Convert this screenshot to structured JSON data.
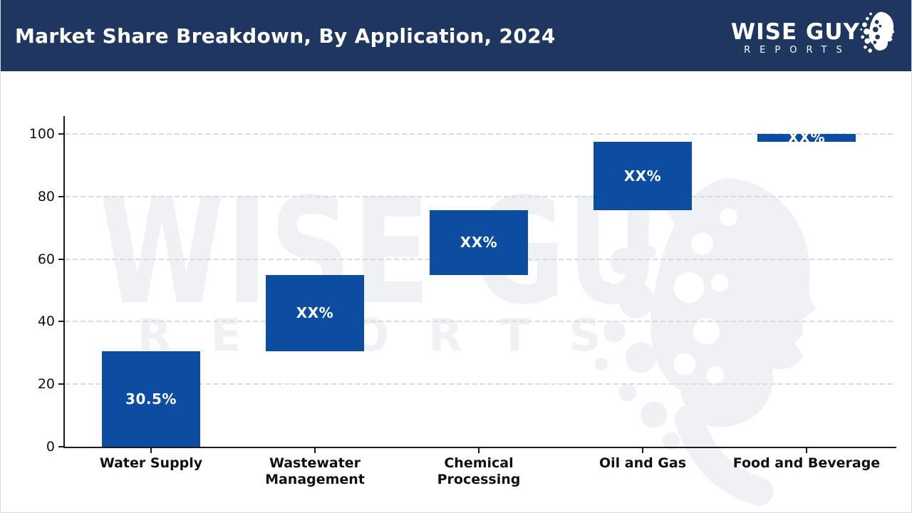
{
  "header": {
    "title": "Market Share Breakdown, By Application, 2024",
    "logo": {
      "wordmark": "WISE GUY",
      "subtitle": "REPORTS"
    }
  },
  "watermark": {
    "wordmark": "WISE GUY",
    "subtitle": "REPORTS"
  },
  "colors": {
    "header_bg": "#1F3660",
    "bar_blue": "#0C4DA2",
    "grid_gray": "#DCDCDC",
    "axis_black": "#1A1A1A",
    "watermark_gray": "#F0F1F4",
    "title_text": "#FFFFFF",
    "bar_label_text": "#FFFFFF"
  },
  "chart_data": {
    "type": "bar",
    "subtype": "floating-waterfall",
    "title": "Market Share Breakdown, By Application, 2024",
    "xlabel": "",
    "ylabel": "",
    "ylim": [
      0,
      100
    ],
    "yticks": [
      0,
      20,
      40,
      60,
      80,
      100
    ],
    "grid": "horizontal-dashed",
    "legend": "none",
    "categories": [
      "Water Supply",
      "Wastewater Management",
      "Chemical Processing",
      "Oil and Gas",
      "Food and Beverage"
    ],
    "category_label_lines": [
      [
        "Water Supply"
      ],
      [
        "Wastewater",
        "Management"
      ],
      [
        "Chemical",
        "Processing"
      ],
      [
        "Oil and Gas"
      ],
      [
        "Food and Beverage"
      ]
    ],
    "segments": [
      {
        "category": "Water Supply",
        "start": 0,
        "end": 30.5,
        "label": "30.5%"
      },
      {
        "category": "Wastewater Management",
        "start": 30.5,
        "end": 55,
        "label": "XX%"
      },
      {
        "category": "Chemical Processing",
        "start": 55,
        "end": 75.6,
        "label": "XX%"
      },
      {
        "category": "Oil and Gas",
        "start": 75.6,
        "end": 97.5,
        "label": "XX%"
      },
      {
        "category": "Food and Beverage",
        "start": 97.5,
        "end": 100,
        "label": "XX%"
      }
    ]
  }
}
